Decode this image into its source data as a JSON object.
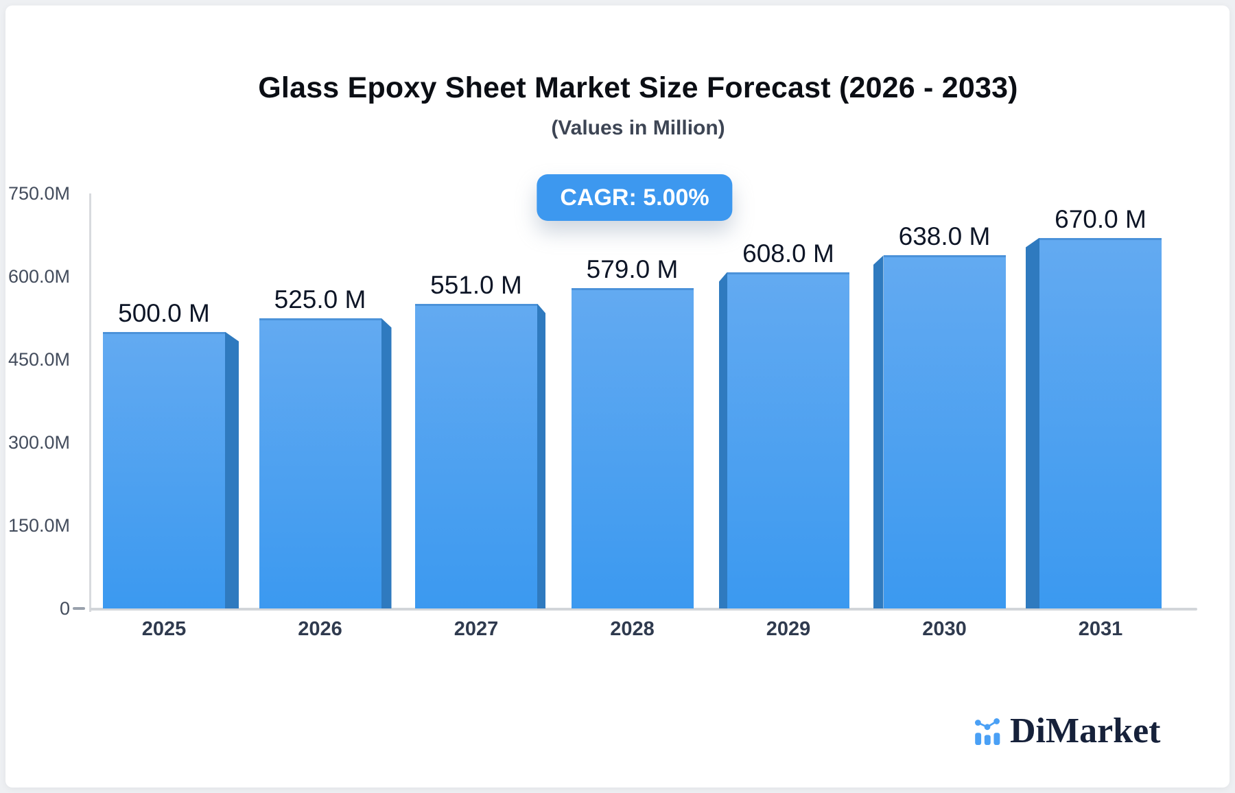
{
  "header": {
    "title": "Glass Epoxy Sheet Market Size Forecast (2026 - 2033)",
    "subtitle": "(Values in Million)"
  },
  "cagr_badge": {
    "label": "CAGR: 5.00%"
  },
  "chart_data": {
    "type": "bar",
    "title": "Glass Epoxy Sheet Market Size Forecast (2026 - 2033)",
    "subtitle": "(Values in Million)",
    "unit": "Million",
    "cagr_percent": 5.0,
    "categories": [
      "2025",
      "2026",
      "2027",
      "2028",
      "2029",
      "2030",
      "2031"
    ],
    "values": [
      500,
      525,
      551,
      579,
      608,
      638,
      670
    ],
    "bar_labels": [
      "500.0 M",
      "525.0 M",
      "551.0 M",
      "579.0 M",
      "608.0 M",
      "638.0 M",
      "670.0 M"
    ],
    "y_tick_values": [
      750,
      600,
      450,
      300,
      150,
      0
    ],
    "y_tick_labels": [
      "750.0M",
      "600.0M",
      "450.0M",
      "300.0M",
      "150.0M",
      "0"
    ],
    "ylim": [
      0,
      750
    ],
    "grid": "off",
    "legend": "none"
  },
  "colors": {
    "bar_face_top": "#63aaf1",
    "bar_face_bottom": "#3b99f0",
    "bar_bevel": "#2f7abf",
    "badge_bg": "#3d98ef",
    "badge_text": "#ffffff",
    "axis_line": "#d8dade",
    "brand_blue": "#4aa0f5",
    "brand_navy": "#16213a"
  },
  "logo": {
    "icon": "mini-bar-line-chart-icon",
    "text": "DiMarket"
  }
}
